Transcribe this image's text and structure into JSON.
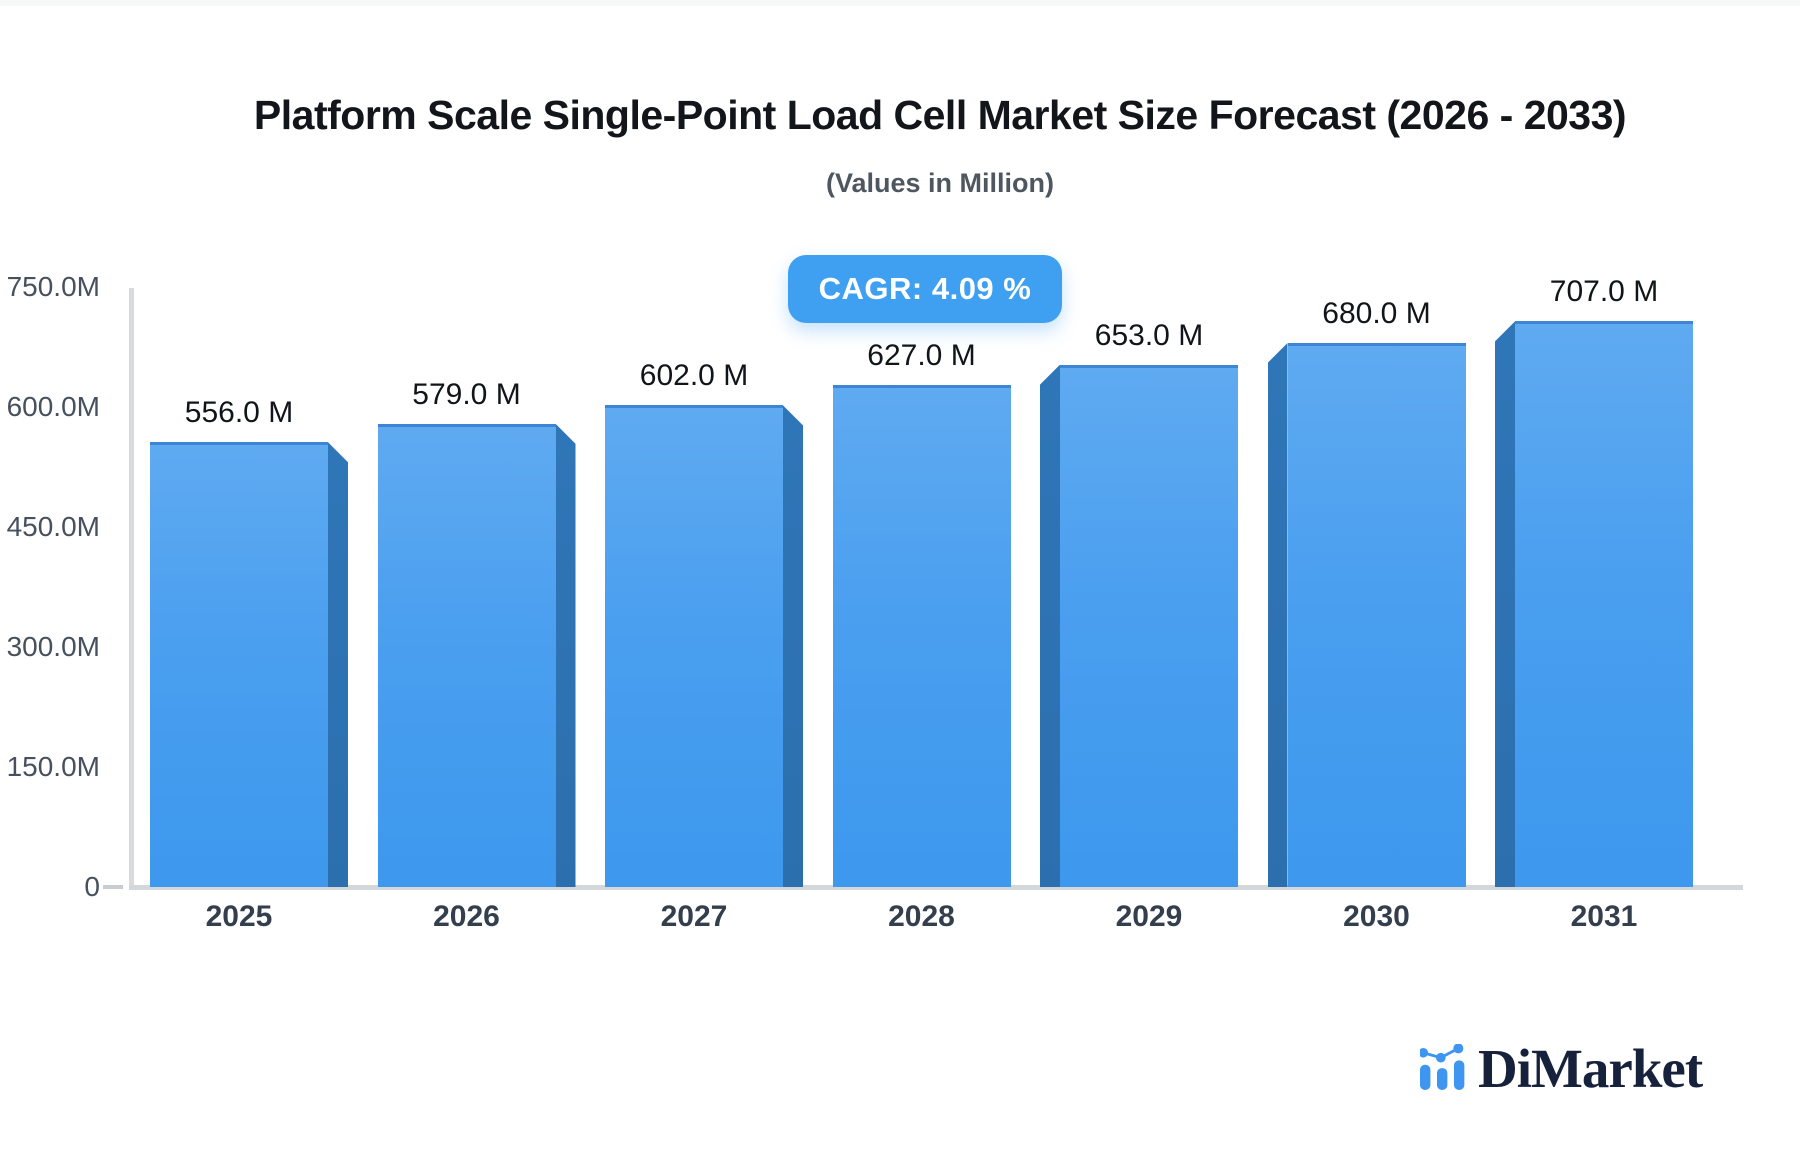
{
  "page": {
    "title": "Platform Scale Single-Point Load Cell Market Size Forecast (2026 - 2033)",
    "subtitle": "(Values in Million)",
    "cagr_label": "CAGR: 4.09 %"
  },
  "chart_data": {
    "type": "bar",
    "title": "Platform Scale Single-Point Load Cell Market Size Forecast (2026 - 2033)",
    "subtitle": "(Values in Million)",
    "unit": "millions",
    "categories": [
      "2025",
      "2026",
      "2027",
      "2028",
      "2029",
      "2030",
      "2031"
    ],
    "values": [
      556.0,
      579.0,
      602.0,
      627.0,
      653.0,
      680.0,
      707.0
    ],
    "bar_labels": [
      "556.0 M",
      "579.0 M",
      "602.0 M",
      "627.0 M",
      "653.0 M",
      "680.0 M",
      "707.0 M"
    ],
    "y_ticks": [
      {
        "label": "750.0M",
        "value": 750
      },
      {
        "label": "600.0M",
        "value": 600
      },
      {
        "label": "450.0M",
        "value": 450
      },
      {
        "label": "300.0M",
        "value": 300
      },
      {
        "label": "150.0M",
        "value": 150
      },
      {
        "label": "0",
        "value": 0
      }
    ],
    "ylim_millions": [
      0,
      750
    ],
    "grid": false,
    "legend_position": "none",
    "annotation": "CAGR: 4.09 %",
    "colors": {
      "bar_face_top": "#5FAAF1",
      "bar_face_bottom": "#3D98EE",
      "bar_top_edge": "#3D86D6",
      "bar_side": "#2E73B4",
      "axis_line": "#D8DBDE",
      "badge_bg": "#3FA0F1",
      "badge_text": "#FFFFFF",
      "title_text": "#12161B",
      "subtitle_text": "#4E575F"
    }
  },
  "logo": {
    "brand": "DiMarket",
    "icon": "mini-bar-line-chart-icon",
    "brand_color": "#16213C",
    "icon_color": "#3E96F0"
  }
}
